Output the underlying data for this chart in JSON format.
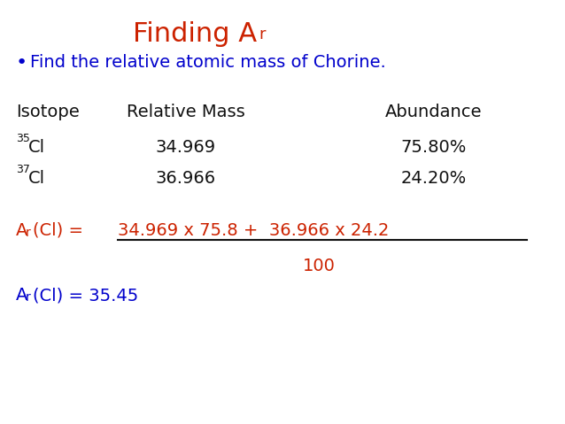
{
  "bg_color": "#ffffff",
  "title_color": "#cc2200",
  "bullet_color": "#0000cc",
  "red_color": "#cc2200",
  "black_color": "#111111",
  "blue_color": "#0000cc",
  "bullet_text": "Find the relative atomic mass of Chorine.",
  "table_header": [
    "Isotope",
    "Relative Mass",
    "Abundance"
  ],
  "row1_mass": "34.969",
  "row1_abund": "75.80%",
  "row2_mass": "36.966",
  "row2_abund": "24.20%",
  "formula_numerator": "34.969 x 75.8 +  36.966 x 24.2",
  "formula_denominator": "100",
  "result": "(Cl) = 35.45",
  "title_fontsize": 22,
  "body_fontsize": 14,
  "small_fontsize": 9,
  "header_fontsize": 14
}
